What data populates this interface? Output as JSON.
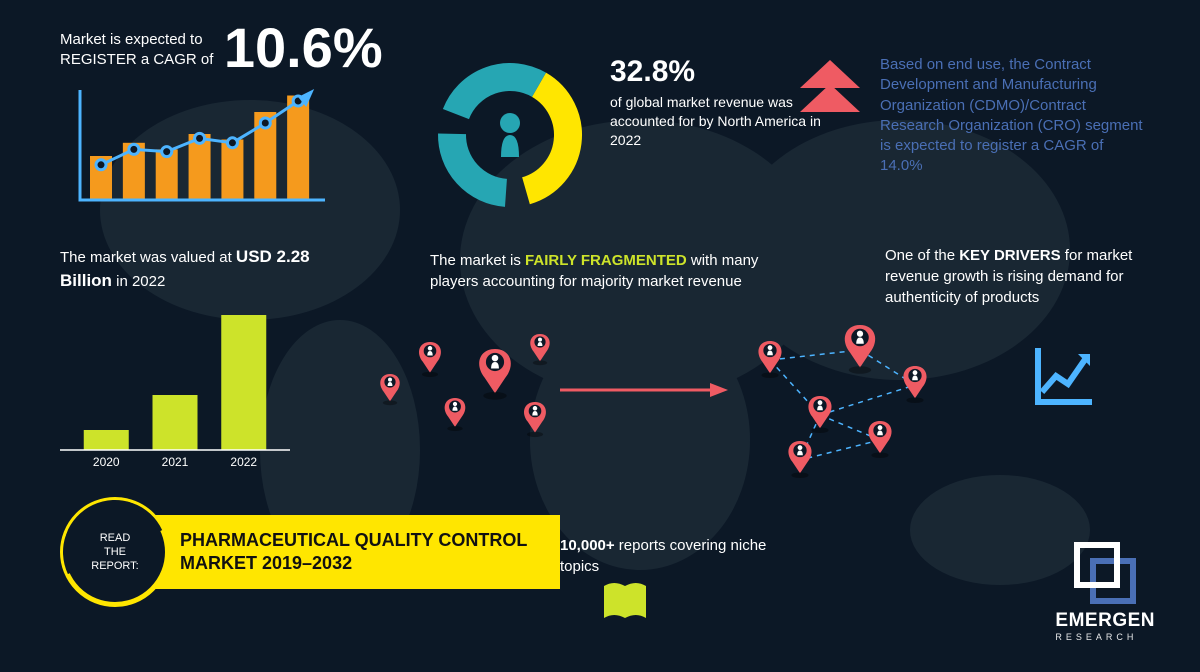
{
  "colors": {
    "bg": "#0c1826",
    "accent_blue": "#4db4ff",
    "orange": "#f59a1d",
    "yellow": "#ffe600",
    "lime": "#cde32a",
    "teal": "#26a6b3",
    "coral": "#ef5b63",
    "navy_text": "#4a6fb5"
  },
  "cagr": {
    "lead": "Market is expected to\nREGISTER a CAGR of",
    "value": "10.6%"
  },
  "barline_chart": {
    "type": "bar+line",
    "bar_color": "#f59a1d",
    "line_color": "#4db4ff",
    "bar_values": [
      40,
      52,
      46,
      60,
      55,
      80,
      95
    ],
    "line_values": [
      32,
      46,
      44,
      56,
      52,
      70,
      90
    ],
    "ymax": 100
  },
  "donut": {
    "type": "donut",
    "yellow_pct": 40,
    "teal_pct": 60,
    "gap_deg": 10,
    "colors": {
      "a": "#ffe600",
      "b": "#26a6b3"
    },
    "value": "32.8%",
    "sub": "of global market revenue was accounted for by North America in 2022"
  },
  "enduse": {
    "arrow_color": "#ef5b63",
    "text": "Based on end use, the Contract Development and Manufacturing Organization (CDMO)/Contract Research Organization (CRO) segment is expected to register a CAGR of 14.0%"
  },
  "valued": {
    "pre": "The market was valued at",
    "amount": "USD 2.28 Billion",
    "post": " in 2022"
  },
  "valued_chart": {
    "type": "bar",
    "categories": [
      "2020",
      "2021",
      "2022"
    ],
    "values": [
      20,
      55,
      135
    ],
    "ymax": 140,
    "bar_color": "#cde32a",
    "bar_width": 0.55
  },
  "fragmented": {
    "pre": "The market is ",
    "hl": "FAIRLY FRAGMENTED",
    "post": " with many players accounting for majority market revenue",
    "hl_color": "#cde32a",
    "pin_color": "#ef5b63"
  },
  "drivers": {
    "pre": "One of the ",
    "hl": "KEY DRIVERS",
    "post": " for market revenue growth is rising demand for authenticity of products",
    "icon_color": "#4db4ff"
  },
  "report": {
    "ring": "READ\nTHE\nREPORT:",
    "title": "PHARMACEUTICAL QUALITY CONTROL MARKET 2019–2032",
    "bar_color": "#ffe600"
  },
  "reports_count": {
    "bold": "10,000+",
    "rest": " reports covering niche topics",
    "icon_color": "#cde32a"
  },
  "logo": {
    "name": "EMERGEN",
    "sub": "RESEARCH"
  }
}
